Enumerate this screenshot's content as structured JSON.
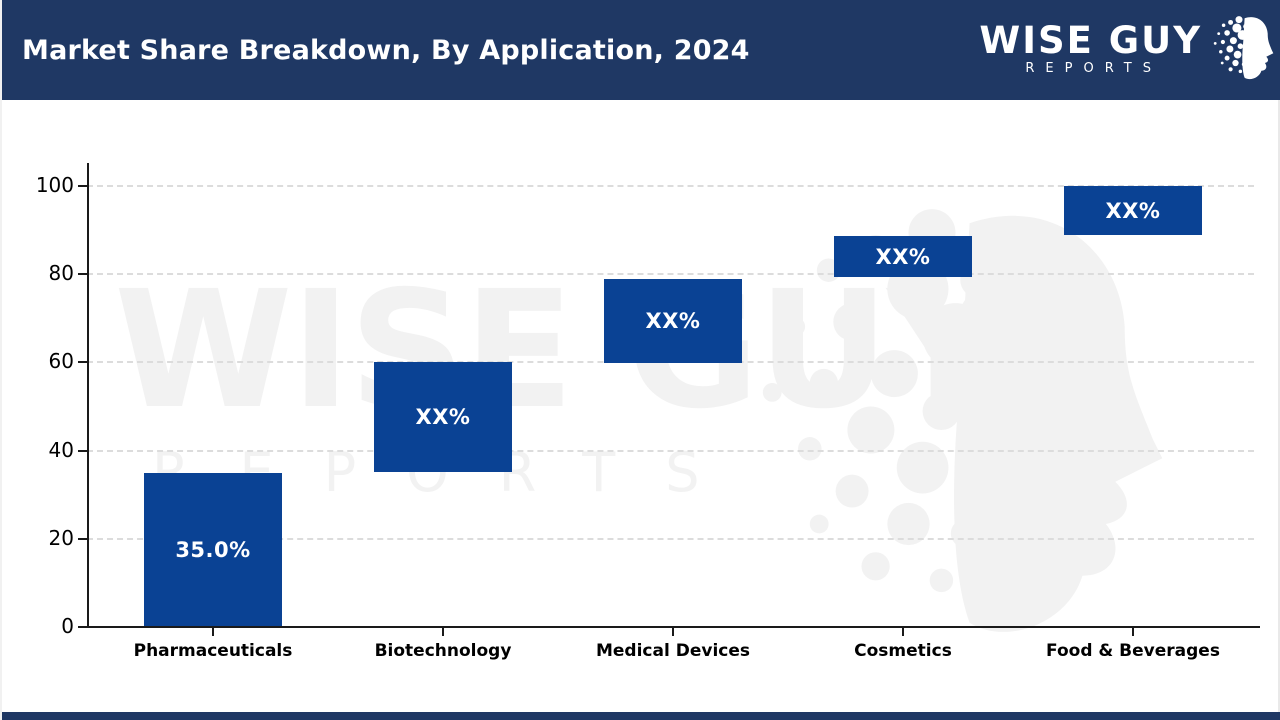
{
  "header": {
    "title": "Market Share Breakdown, By Application, 2024",
    "brand": {
      "line1": "WISE GUY",
      "line2": "REPORTS"
    }
  },
  "watermark": {
    "line1": "WISE GUY",
    "line2": "REPORTS"
  },
  "colors": {
    "header_bg": "#1f3864",
    "bar": "#0a4294",
    "bar_label": "#ffffff",
    "gridline": "#dcdcdc",
    "axis": "#1a1a1a",
    "watermark": "#f2f2f2"
  },
  "chart_data": {
    "type": "bar",
    "subtype": "waterfall",
    "title": "Market Share Breakdown, By Application, 2024",
    "categories": [
      "Pharmaceuticals",
      "Biotechnology",
      "Medical Devices",
      "Cosmetics",
      "Food & Beverages"
    ],
    "segments": [
      {
        "category": "Pharmaceuticals",
        "start": 0,
        "end": 35,
        "label": "35.0%"
      },
      {
        "category": "Biotechnology",
        "start": 35,
        "end": 60,
        "label": "XX%"
      },
      {
        "category": "Medical Devices",
        "start": 60,
        "end": 79,
        "label": "XX%"
      },
      {
        "category": "Cosmetics",
        "start": 79.4,
        "end": 88.7,
        "label": "XX%"
      },
      {
        "category": "Food & Beverages",
        "start": 89,
        "end": 100,
        "label": "XX%"
      }
    ],
    "yticks": [
      0,
      20,
      40,
      60,
      80,
      100
    ],
    "ylim": [
      0,
      105
    ],
    "xlabel": "",
    "ylabel": "",
    "grid": {
      "horizontal": true,
      "style": "dashed"
    },
    "legend": null
  }
}
